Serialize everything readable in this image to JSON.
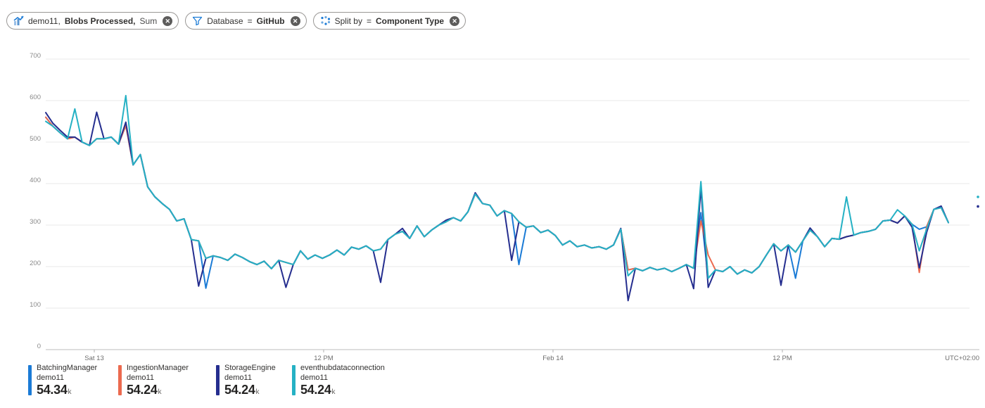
{
  "filters": {
    "metric_pill": {
      "icon": "metrics-chart-icon",
      "scope": "demo11,",
      "metric": "Blobs Processed,",
      "aggregation": "Sum",
      "close": "x"
    },
    "filter_pill": {
      "icon": "filter-funnel-icon",
      "label": "Database",
      "operator": "=",
      "value": "GitHub",
      "close": "x"
    },
    "split_pill": {
      "icon": "split-by-icon",
      "label": "Split by",
      "operator": "=",
      "value": "Component Type",
      "close": "x"
    }
  },
  "chart_data": {
    "type": "line",
    "title": "",
    "ylabel": "",
    "xlabel": "",
    "ylim": [
      0,
      700
    ],
    "grid": true,
    "legend_position": "bottom",
    "y_ticks": [
      700,
      600,
      500,
      400,
      300,
      200,
      100,
      0
    ],
    "x_ticks": [
      {
        "label": "Sat 13",
        "x": 134
      },
      {
        "label": "12 PM",
        "x": 460
      },
      {
        "label": "Feb 14",
        "x": 786
      },
      {
        "label": "12 PM",
        "x": 1112
      }
    ],
    "timezone_label": "UTC+02:00",
    "series": [
      {
        "name": "BatchingManager",
        "resource": "demo11",
        "total": "54.34",
        "unit": "k",
        "color": "#1b7bd6",
        "values": [
          560,
          538,
          522,
          508,
          512,
          500,
          492,
          508,
          508,
          512,
          495,
          540,
          445,
          470,
          392,
          368,
          352,
          338,
          310,
          315,
          265,
          262,
          148,
          226,
          222,
          215,
          230,
          222,
          212,
          205,
          213,
          195,
          215,
          210,
          205,
          238,
          218,
          228,
          220,
          228,
          240,
          228,
          247,
          242,
          250,
          238,
          242,
          265,
          278,
          285,
          268,
          298,
          272,
          288,
          300,
          308,
          318,
          310,
          332,
          375,
          352,
          348,
          322,
          335,
          328,
          205,
          295,
          298,
          282,
          288,
          275,
          252,
          262,
          248,
          252,
          245,
          248,
          242,
          252,
          290,
          192,
          196,
          190,
          198,
          192,
          196,
          188,
          196,
          205,
          196,
          330,
          172,
          192,
          188,
          200,
          182,
          192,
          185,
          200,
          228,
          255,
          238,
          252,
          172,
          262,
          288,
          272,
          248,
          268,
          266,
          272,
          276,
          282,
          285,
          290,
          310,
          312,
          305,
          322,
          302,
          290,
          296,
          338,
          342,
          306
        ]
      },
      {
        "name": "IngestionManager",
        "resource": "demo11",
        "total": "54.24",
        "unit": "k",
        "color": "#ec6a4f",
        "values": [
          560,
          538,
          522,
          508,
          512,
          500,
          492,
          508,
          508,
          512,
          495,
          540,
          445,
          470,
          392,
          368,
          352,
          338,
          310,
          315,
          265,
          262,
          220,
          226,
          222,
          215,
          230,
          222,
          212,
          205,
          213,
          195,
          215,
          210,
          205,
          238,
          218,
          228,
          220,
          228,
          240,
          228,
          247,
          242,
          250,
          238,
          242,
          265,
          278,
          285,
          268,
          298,
          272,
          288,
          300,
          308,
          318,
          310,
          332,
          375,
          352,
          348,
          322,
          335,
          328,
          308,
          295,
          298,
          282,
          288,
          275,
          252,
          262,
          248,
          252,
          245,
          248,
          242,
          252,
          290,
          192,
          196,
          190,
          198,
          192,
          196,
          188,
          196,
          205,
          196,
          310,
          228,
          192,
          188,
          200,
          182,
          192,
          185,
          200,
          228,
          255,
          238,
          252,
          235,
          262,
          288,
          272,
          248,
          268,
          266,
          272,
          276,
          282,
          285,
          290,
          310,
          312,
          305,
          322,
          302,
          186,
          296,
          338,
          342,
          306
        ]
      },
      {
        "name": "StorageEngine",
        "resource": "demo11",
        "total": "54.24",
        "unit": "k",
        "color": "#252e8f",
        "values": [
          571,
          545,
          528,
          512,
          512,
          500,
          492,
          572,
          508,
          512,
          495,
          548,
          445,
          470,
          392,
          368,
          352,
          338,
          310,
          315,
          265,
          153,
          220,
          226,
          222,
          215,
          230,
          222,
          212,
          205,
          213,
          195,
          215,
          150,
          205,
          238,
          218,
          228,
          220,
          228,
          240,
          228,
          247,
          242,
          250,
          238,
          162,
          265,
          278,
          292,
          268,
          298,
          272,
          288,
          300,
          312,
          318,
          310,
          332,
          378,
          352,
          348,
          322,
          335,
          215,
          308,
          295,
          298,
          282,
          288,
          275,
          252,
          262,
          248,
          252,
          245,
          248,
          242,
          252,
          292,
          118,
          196,
          190,
          198,
          192,
          196,
          188,
          196,
          205,
          147,
          390,
          150,
          192,
          188,
          200,
          182,
          192,
          185,
          200,
          228,
          255,
          155,
          252,
          235,
          262,
          293,
          272,
          248,
          268,
          266,
          272,
          276,
          282,
          285,
          290,
          310,
          312,
          305,
          322,
          295,
          197,
          282,
          338,
          346,
          306
        ]
      },
      {
        "name": "eventhubdataconnection",
        "resource": "demo11",
        "total": "54.24",
        "unit": "k",
        "color": "#25b1c4",
        "values": [
          550,
          538,
          522,
          508,
          580,
          500,
          492,
          508,
          508,
          512,
          495,
          612,
          445,
          470,
          392,
          368,
          352,
          338,
          310,
          315,
          265,
          262,
          220,
          226,
          222,
          215,
          230,
          222,
          212,
          205,
          213,
          195,
          215,
          210,
          205,
          238,
          218,
          228,
          220,
          228,
          240,
          228,
          247,
          242,
          250,
          238,
          242,
          265,
          278,
          285,
          268,
          298,
          272,
          288,
          300,
          308,
          318,
          310,
          332,
          375,
          352,
          348,
          322,
          335,
          328,
          308,
          295,
          298,
          282,
          288,
          275,
          252,
          262,
          248,
          252,
          245,
          248,
          242,
          252,
          290,
          178,
          196,
          190,
          198,
          192,
          196,
          188,
          196,
          205,
          196,
          405,
          172,
          192,
          188,
          200,
          182,
          192,
          185,
          200,
          228,
          255,
          238,
          252,
          235,
          262,
          288,
          272,
          248,
          268,
          266,
          368,
          276,
          282,
          285,
          290,
          310,
          312,
          337,
          322,
          302,
          238,
          290,
          338,
          342,
          306
        ]
      }
    ],
    "edge_dots": [
      {
        "x": 1390,
        "value": 368,
        "color": "#25b1c4"
      },
      {
        "x": 1390,
        "value": 345,
        "color": "#252e8f"
      }
    ]
  },
  "legend": {
    "items_note": "see chart_data.series"
  }
}
